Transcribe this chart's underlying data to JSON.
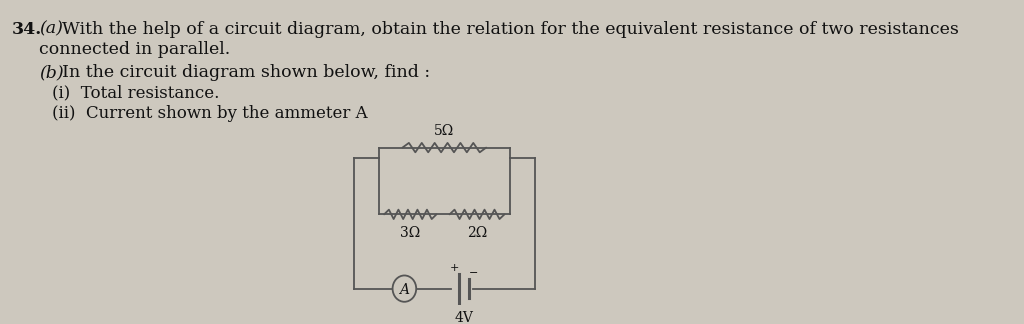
{
  "background_color": "#cdc8be",
  "text_color": "#111111",
  "question_number": "34.",
  "part_a_label": "(a)",
  "part_a_text": "With the help of a circuit diagram, obtain the relation for the equivalent resistance of two resistances",
  "part_a_cont": "connected in parallel.",
  "part_b_label": "(b)",
  "part_b_text": "In the circuit diagram shown below, find :",
  "part_b_i": "(i)  Total resistance.",
  "part_b_ii": "(ii)  Current shown by the ammeter A",
  "r1_label": "5Ω",
  "r2_label": "3Ω",
  "r3_label": "2Ω",
  "battery_label": "4V",
  "ammeter_label": "A",
  "font_size_main": 12.5,
  "font_size_sub": 12.0,
  "wire_color": "#555555",
  "wire_lw": 1.3
}
